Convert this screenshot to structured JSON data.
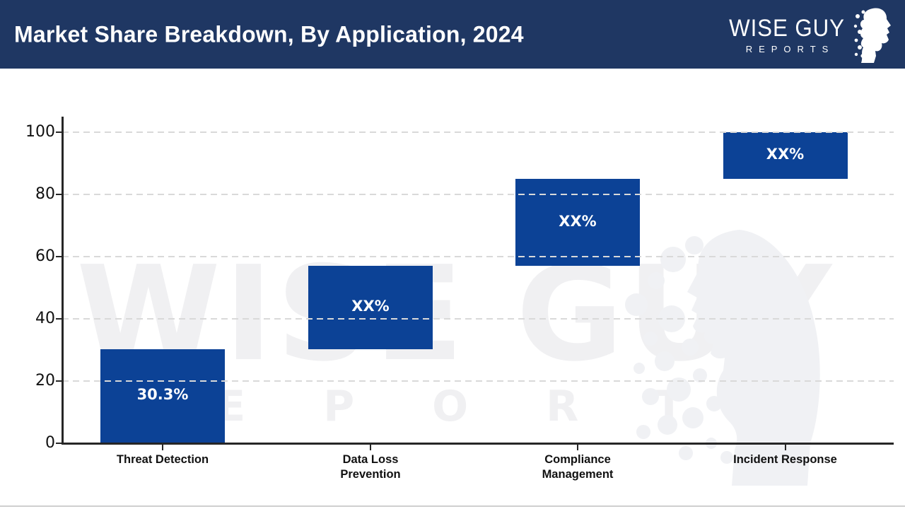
{
  "header": {
    "title": "Market Share Breakdown, By Application, 2024",
    "logo": {
      "name": "WISE GUY",
      "subtext": "REPORTS"
    }
  },
  "watermark": {
    "line1": "WISE GUY",
    "line2": "REPORTS"
  },
  "colors": {
    "header_bg": "#1f3763",
    "bar": "#0c4296",
    "bar_label": "#ffffff",
    "axis": "#262626",
    "grid": "#d9d9d9",
    "tick_label": "#111111",
    "watermark": "#f0f1f4",
    "watermark_text": "#f0f0f2"
  },
  "chart_data": {
    "type": "bar",
    "subtype": "waterfall",
    "title": "Market Share Breakdown, By Application, 2024",
    "categories": [
      "Threat Detection",
      "Data Loss\nPrevention",
      "Compliance\nManagement",
      "Incident Response"
    ],
    "segments": [
      {
        "category": "Threat Detection",
        "start": 0,
        "end": 30.3,
        "label": "30.3%"
      },
      {
        "category": "Data Loss Prevention",
        "start": 30.3,
        "end": 57,
        "label": "XX%"
      },
      {
        "category": "Compliance Management",
        "start": 57,
        "end": 85,
        "label": "XX%"
      },
      {
        "category": "Incident Response",
        "start": 85,
        "end": 100,
        "label": "XX%"
      }
    ],
    "yticks": [
      0,
      20,
      40,
      60,
      80,
      100
    ],
    "ylim": [
      0,
      105
    ],
    "xlabel": "",
    "ylabel": "",
    "grid": "dashed-horizontal-above-bars",
    "legend": "none"
  }
}
